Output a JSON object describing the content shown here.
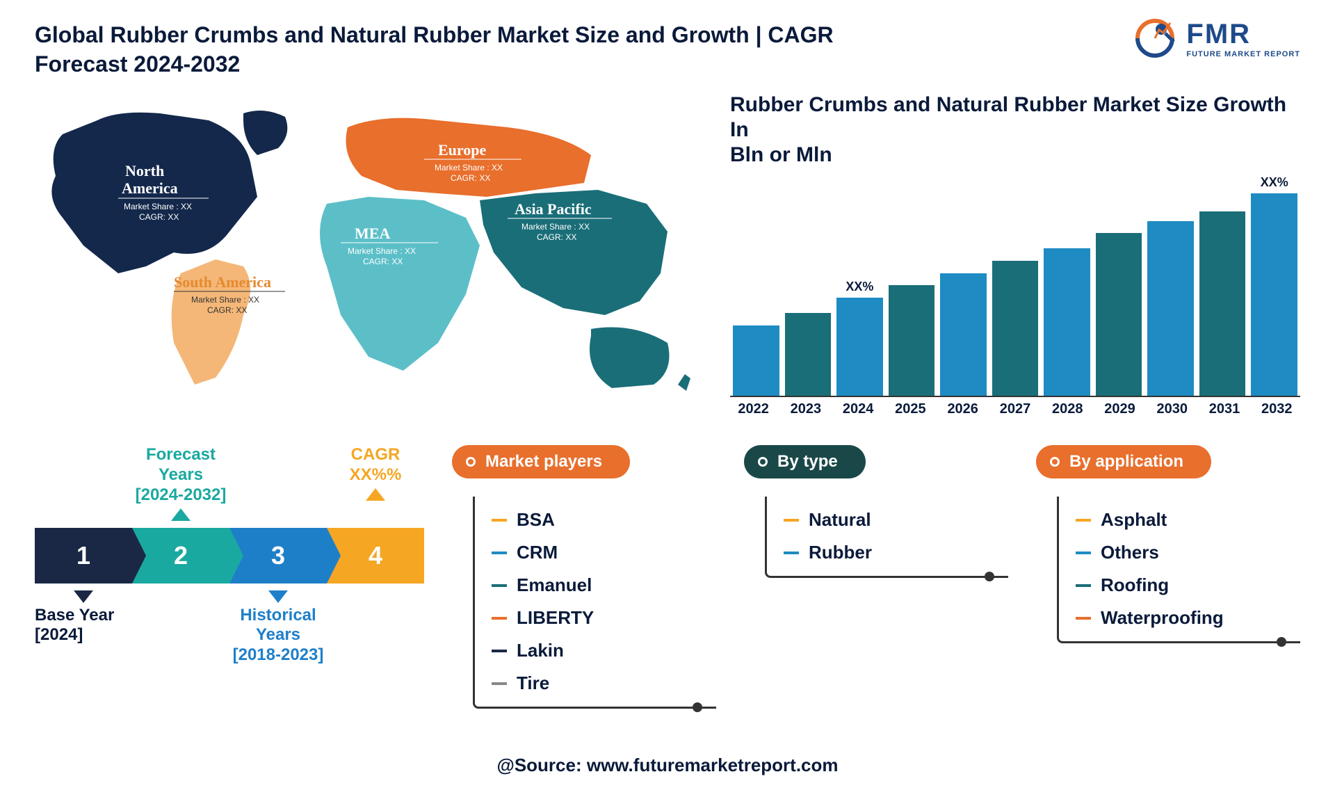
{
  "title_line1": "Global Rubber Crumbs and Natural Rubber  Market Size and Growth | CAGR",
  "title_line2": " Forecast 2024-2032",
  "logo": {
    "main": "FMR",
    "sub": "FUTURE MARKET REPORT"
  },
  "map": {
    "regions": [
      {
        "name": "North America",
        "share": "Market Share : XX",
        "cagr": "CAGR: XX",
        "fill": "#13284b"
      },
      {
        "name": "South America",
        "share": "Market Share : XX",
        "cagr": "CAGR: XX",
        "fill": "#f4b778"
      },
      {
        "name": "Europe",
        "share": "Market Share : XX",
        "cagr": "CAGR: XX",
        "fill": "#e86f2c"
      },
      {
        "name": "MEA",
        "share": "Market Share : XX",
        "cagr": "CAGR: XX",
        "fill": "#5cbfc8"
      },
      {
        "name": "Asia Pacific",
        "share": "Market Share : XX",
        "cagr": "CAGR: XX",
        "fill": "#1a6e78"
      }
    ]
  },
  "bar_chart": {
    "type": "bar",
    "title": "Rubber Crumbs and Natural Rubber  Market Size Growth In\nBln or Mln",
    "years": [
      "2022",
      "2023",
      "2024",
      "2025",
      "2026",
      "2027",
      "2028",
      "2029",
      "2030",
      "2031",
      "2032"
    ],
    "values": [
      115,
      135,
      160,
      180,
      200,
      220,
      240,
      265,
      285,
      300,
      330
    ],
    "max": 340,
    "colors": [
      "#1e8bc3",
      "#1a6e78",
      "#1e8bc3",
      "#1a6e78",
      "#1e8bc3",
      "#1a6e78",
      "#1e8bc3",
      "#1a6e78",
      "#1e8bc3",
      "#1a6e78",
      "#1e8bc3"
    ],
    "top_labels": {
      "2": "XX%",
      "10": "XX%"
    },
    "background_color": "#ffffff"
  },
  "timeline": {
    "forecast_label": "Forecast Years",
    "forecast_range": "[2024-2032]",
    "cagr_label": "CAGR",
    "cagr_value": "XX%%",
    "base_label": "Base Year",
    "base_value": "[2024]",
    "hist_label": "Historical Years",
    "hist_range": "[2018-2023]",
    "segments": [
      "1",
      "2",
      "3",
      "4"
    ],
    "colors": {
      "forecast": "#1aa9a0",
      "cagr": "#f5a623",
      "base": "#1a2845",
      "hist": "#1e7fc9"
    }
  },
  "pills": {
    "market_players": {
      "title": "Market players",
      "bg": "#e86f2c",
      "items": [
        "BSA",
        "CRM",
        "Emanuel",
        "LIBERTY",
        "Lakin",
        "Tire"
      ],
      "tick_colors": [
        "#f5a623",
        "#1e8bc3",
        "#1a6e78",
        "#e86f2c",
        "#1a2845",
        "#888888"
      ]
    },
    "by_type": {
      "title": "By type",
      "bg": "#1a4848",
      "items": [
        "Natural",
        "Rubber"
      ],
      "tick_colors": [
        "#f5a623",
        "#1e8bc3"
      ]
    },
    "by_application": {
      "title": "By application",
      "bg": "#e86f2c",
      "items": [
        "Asphalt",
        "Others",
        "Roofing",
        "Waterproofing"
      ],
      "tick_colors": [
        "#f5a623",
        "#1e8bc3",
        "#1a6e78",
        "#e86f2c"
      ]
    }
  },
  "source": "@Source: www.futuremarketreport.com"
}
